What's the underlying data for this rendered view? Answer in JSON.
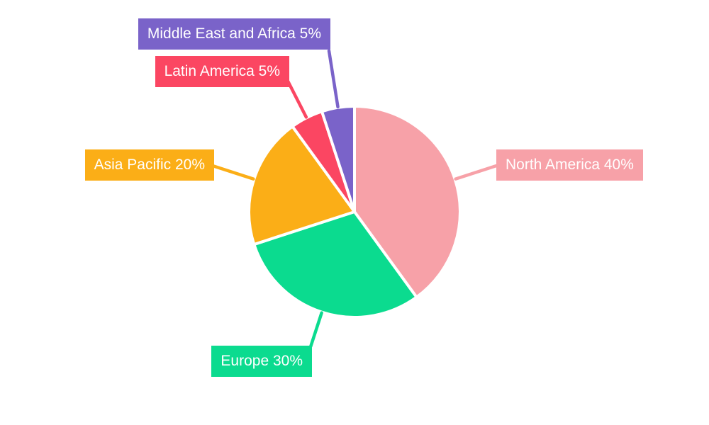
{
  "chart_data": {
    "type": "pie",
    "title": "",
    "start_angle": "top",
    "direction": "clockwise",
    "legend_position": "none",
    "label_style": "colored boxes with radial leader lines",
    "background_color": "#ffffff",
    "label_text_color": "#ffffff",
    "separator_color": "#ffffff",
    "slices": [
      {
        "label": "North America",
        "value": 40,
        "pct": "40%",
        "display": "North America 40%",
        "color": "#F7A1A8"
      },
      {
        "label": "Europe",
        "value": 30,
        "pct": "30%",
        "display": "Europe 30%",
        "color": "#0BDB8F"
      },
      {
        "label": "Asia Pacific",
        "value": 20,
        "pct": "20%",
        "display": "Asia Pacific 20%",
        "color": "#FBAE17"
      },
      {
        "label": "Latin America",
        "value": 5,
        "pct": "5%",
        "display": "Latin America 5%",
        "color": "#FB4662"
      },
      {
        "label": "Middle East and Africa",
        "value": 5,
        "pct": "5%",
        "display": "Middle East and Africa 5%",
        "color": "#7A63C9"
      }
    ]
  }
}
